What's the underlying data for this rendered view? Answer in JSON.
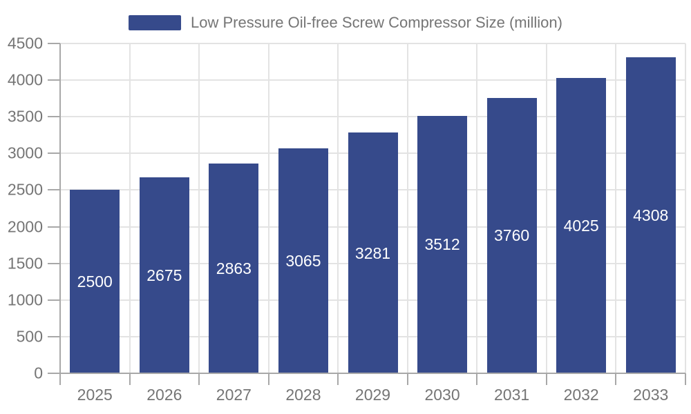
{
  "chart_data": {
    "type": "bar",
    "title": "Low Pressure Oil-free Screw Compressor Size (million)",
    "legend_entries": [
      "Low Pressure Oil-free Screw Compressor Size (million)"
    ],
    "legend_position": "top-center",
    "categories": [
      "2025",
      "2026",
      "2027",
      "2028",
      "2029",
      "2030",
      "2031",
      "2032",
      "2033"
    ],
    "values": [
      2500,
      2675,
      2863,
      3065,
      3281,
      3512,
      3760,
      4025,
      4308
    ],
    "xlabel": "",
    "ylabel": "",
    "ylim": [
      0,
      4500
    ],
    "yticks": [
      0,
      500,
      1000,
      1500,
      2000,
      2500,
      3000,
      3500,
      4000,
      4500
    ],
    "grid": true,
    "bar_labels_inside": true,
    "colors": {
      "bar": "#364A8B",
      "grid": "#E3E3E3",
      "axis": "#A8A8A8",
      "text": "#757575",
      "value_label": "#FFFFFF",
      "background": "#FFFFFF"
    }
  }
}
